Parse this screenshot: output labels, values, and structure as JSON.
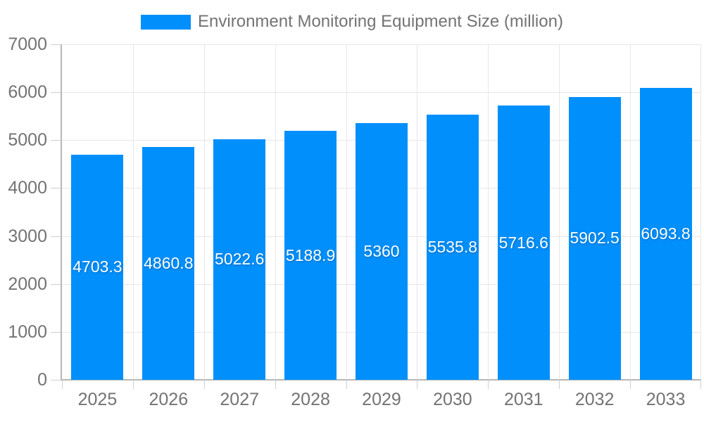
{
  "chart_data": {
    "type": "bar",
    "title": "Environment Monitoring Equipment Size (million)",
    "categories": [
      "2025",
      "2026",
      "2027",
      "2028",
      "2029",
      "2030",
      "2031",
      "2032",
      "2033"
    ],
    "values": [
      4703.3,
      4860.8,
      5022.6,
      5188.9,
      5360,
      5535.8,
      5716.6,
      5902.5,
      6093.8
    ],
    "bar_labels": [
      "4703.3",
      "4860.8",
      "5022.6",
      "5188.9",
      "5360",
      "5535.8",
      "5716.6",
      "5902.5",
      "6093.8"
    ],
    "y_ticks": [
      0,
      1000,
      2000,
      3000,
      4000,
      5000,
      6000,
      7000
    ],
    "ylim": [
      0,
      7000
    ],
    "xlabel": "",
    "ylabel": "",
    "grid": true,
    "legend_position": "top",
    "legend": [
      {
        "label": "Environment Monitoring Equipment Size (million)",
        "color": "#008FFB"
      }
    ],
    "colors": {
      "bar": "#008FFB",
      "grid": "#e7e7e7",
      "axis": "#b6b6b6",
      "tick": "#cfcfcf",
      "label": "#737373",
      "data_label": "#ffffff",
      "background": "#ffffff"
    }
  }
}
